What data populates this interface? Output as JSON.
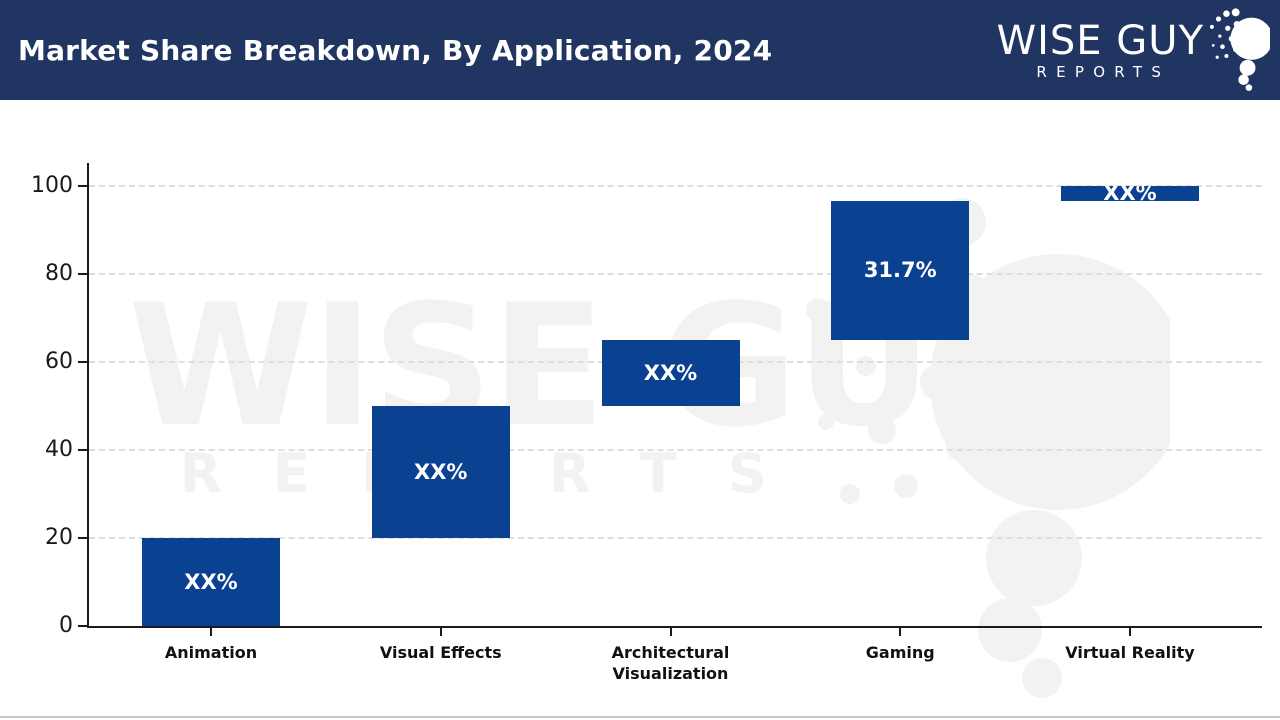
{
  "header": {
    "title": "Market Share Breakdown, By Application, 2024",
    "bg_color": "#213563",
    "logo": {
      "line1": "WISE GUY",
      "line2": "REPORTS"
    }
  },
  "watermark": {
    "line1": "WISE GUY",
    "line2": "REPORTS"
  },
  "chart_data": {
    "type": "bar",
    "variant": "waterfall",
    "title": "Market Share Breakdown, By Application, 2024",
    "categories": [
      "Animation",
      "Visual Effects",
      "Architectural Visualization",
      "Gaming",
      "Virtual Reality"
    ],
    "segments": [
      {
        "start": 0,
        "end": 20,
        "label": "XX%"
      },
      {
        "start": 20,
        "end": 50,
        "label": "XX%"
      },
      {
        "start": 50,
        "end": 65,
        "label": "XX%"
      },
      {
        "start": 65,
        "end": 96.7,
        "label": "31.7%"
      },
      {
        "start": 96.7,
        "end": 100,
        "label": "XX%"
      }
    ],
    "y_ticks": [
      0,
      20,
      40,
      60,
      80,
      100
    ],
    "ylim": [
      0,
      105
    ],
    "xlabel": "",
    "ylabel": "",
    "legend": "none",
    "grid": "horizontal-dashed",
    "bar_color": "#0a4191",
    "axis_color": "#1a1a1a",
    "gridline_color": "#dedede",
    "label_color": "#ffffff"
  }
}
